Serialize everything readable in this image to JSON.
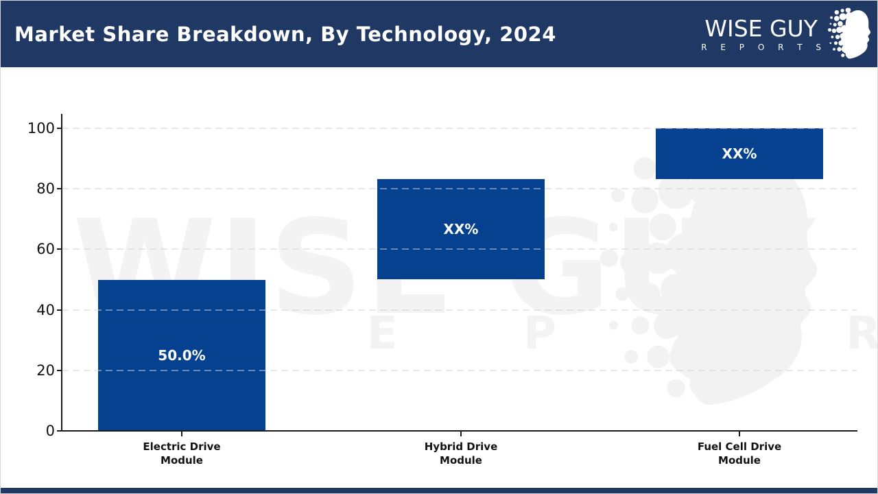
{
  "header": {
    "title": "Market Share Breakdown, By Technology, 2024",
    "background_color": "#1f3864",
    "logo": {
      "line1": "WISE GUY",
      "line2": "R E P O R T S"
    }
  },
  "watermark": {
    "line1": "WISE GUY",
    "line2": "R E P O R T S"
  },
  "chart_data": {
    "type": "bar",
    "subtype": "waterfall",
    "title": "",
    "xlabel": "",
    "ylabel": "",
    "ylim": [
      0,
      100
    ],
    "yticks": [
      0,
      20,
      40,
      60,
      80,
      100
    ],
    "grid": "dashed-horizontal",
    "bar_color": "#05418f",
    "bars": [
      {
        "category": "Electric Drive\nModule",
        "start": 0,
        "end": 50,
        "value": 50.0,
        "label": "50.0%"
      },
      {
        "category": "Hybrid Drive\nModule",
        "start": 50,
        "end": 83.3,
        "value": 33.3,
        "label": "XX%"
      },
      {
        "category": "Fuel Cell Drive\nModule",
        "start": 83.3,
        "end": 100,
        "value": 16.7,
        "label": "XX%"
      }
    ]
  }
}
